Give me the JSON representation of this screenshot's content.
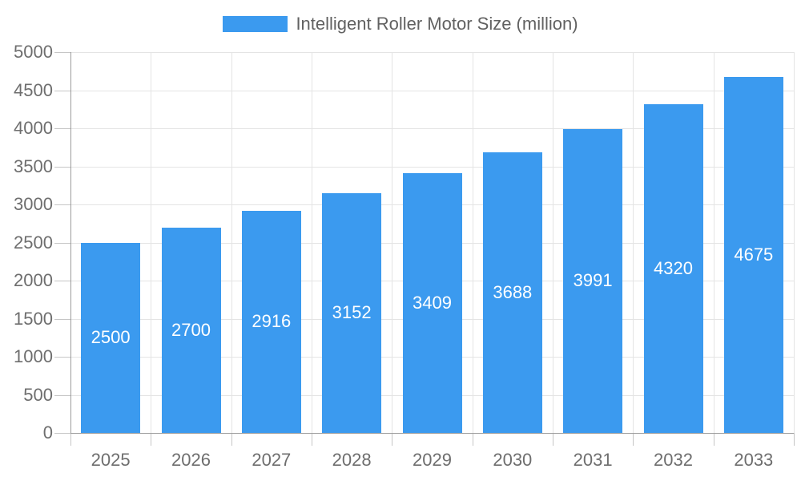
{
  "legend": {
    "label": "Intelligent Roller Motor Size (million)"
  },
  "chart_data": {
    "type": "bar",
    "title": "",
    "series_name": "Intelligent Roller Motor Size (million)",
    "categories": [
      "2025",
      "2026",
      "2027",
      "2028",
      "2029",
      "2030",
      "2031",
      "2032",
      "2033"
    ],
    "values": [
      2500,
      2700,
      2916,
      3152,
      3409,
      3688,
      3991,
      4320,
      4675
    ],
    "value_labels_shown": true,
    "value_label_position": "inside-center",
    "xlabel": "",
    "ylabel": "",
    "ylim": [
      0,
      5000
    ],
    "yticks": [
      0,
      500,
      1000,
      1500,
      2000,
      2500,
      3000,
      3500,
      4000,
      4500,
      5000
    ],
    "grid": true,
    "legend_position": "top-center",
    "colors": {
      "bar": "#3B9AEF",
      "value_label": "#FFFFFF",
      "axis_line": "#9B9B9B",
      "gridline": "#E4E4E4",
      "tick": "#C6C6C6",
      "axis_text": "#6E6E6E",
      "legend_text": "#616161",
      "background": "#FFFFFF"
    }
  }
}
